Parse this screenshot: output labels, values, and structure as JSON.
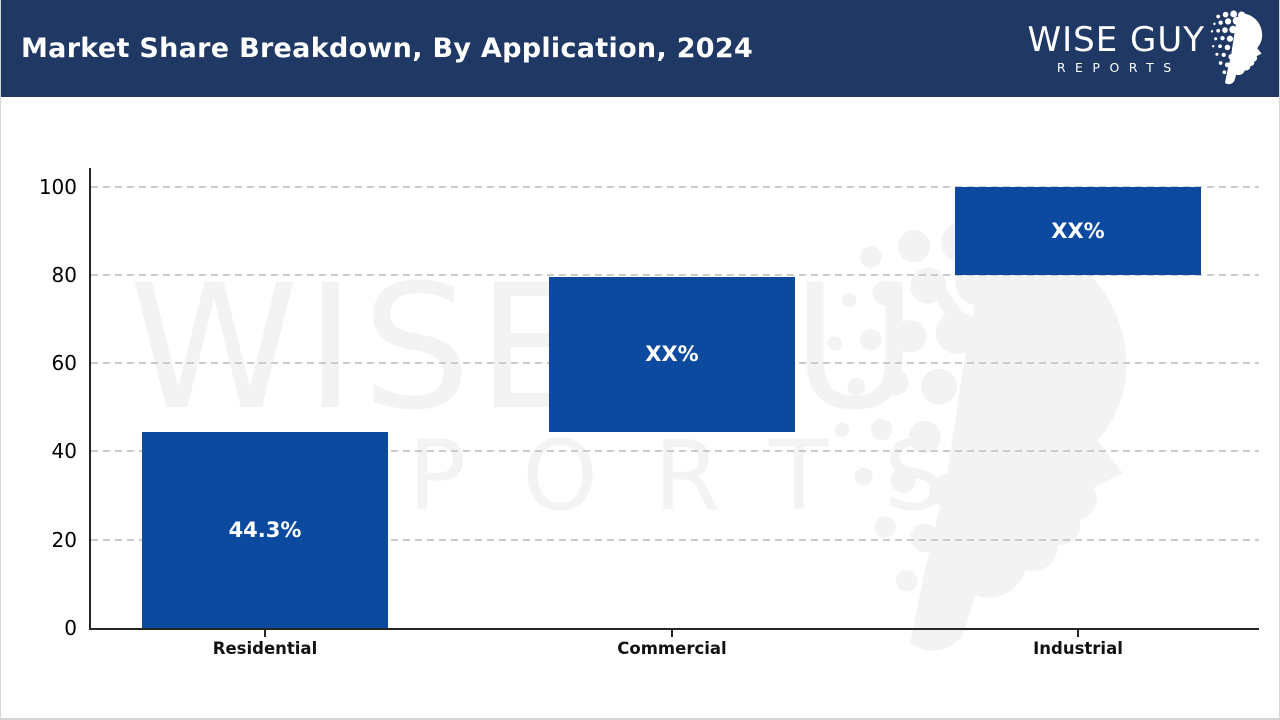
{
  "header": {
    "title": "Market Share Breakdown, By Application, 2024",
    "logo": {
      "line1": "WISE GUY",
      "line2": "REPORTS"
    }
  },
  "watermark": {
    "line1": "WISE GUY",
    "line2": "REPORTS"
  },
  "chart_data": {
    "type": "bar",
    "subtype": "floating-waterfall",
    "title": "Market Share Breakdown, By Application, 2024",
    "categories": [
      "Residential",
      "Commercial",
      "Industrial"
    ],
    "segments": [
      {
        "category": "Residential",
        "start": 0,
        "end": 44.3,
        "label": "44.3%"
      },
      {
        "category": "Commercial",
        "start": 44.3,
        "end": 79.6,
        "label": "XX%"
      },
      {
        "category": "Industrial",
        "start": 80,
        "end": 100,
        "label": "XX%"
      }
    ],
    "yticks": [
      0,
      20,
      40,
      60,
      80,
      100
    ],
    "ylim": [
      0,
      103.5
    ],
    "xlabel": "",
    "ylabel": "",
    "grid": "horizontal-dashed",
    "legend": "none",
    "bar_color": "#0b4a9f",
    "bar_label_color": "#ffffff"
  },
  "colors": {
    "header_bg": "#1f3864",
    "bar": "#0b4a9f",
    "grid": "#cbcbcb",
    "axis": "#262626",
    "watermark": "#f3f3f3"
  }
}
